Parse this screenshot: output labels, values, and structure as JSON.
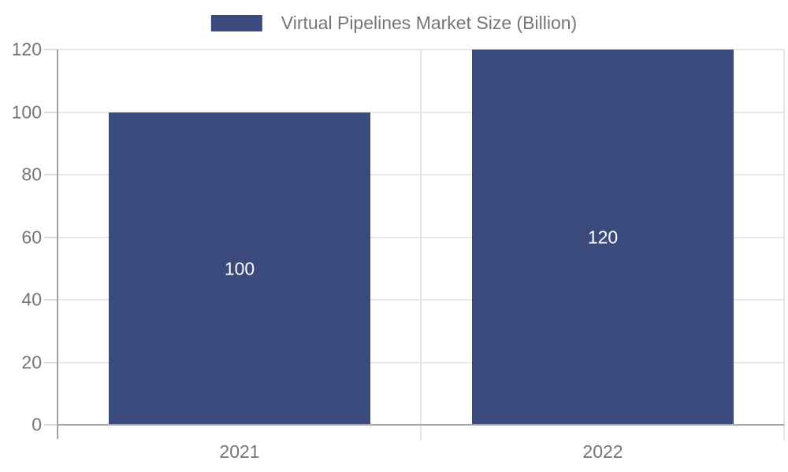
{
  "chart_data": {
    "type": "bar",
    "title": "Virtual Pipelines Market Size (Billion)",
    "categories": [
      "2021",
      "2022"
    ],
    "values": [
      100,
      120
    ],
    "bar_labels": [
      "100",
      "120"
    ],
    "y_ticks": [
      0,
      20,
      40,
      60,
      80,
      100,
      120
    ],
    "ylim": [
      0,
      120
    ],
    "xlabel": "",
    "ylabel": "",
    "grid": true,
    "legend": {
      "position": "top-center",
      "label": "Virtual Pipelines Market Size (Billion)"
    },
    "colors": {
      "bar": "#3A4A7D",
      "bar_label": "#FFFFFF",
      "gridline": "#E7E7E7",
      "tick": "#D9D9D9",
      "separator": "#E3E3E3",
      "axis": "#A0A0A0",
      "baseline": "#A6A6A6",
      "text": "#757575",
      "background": "#FFFFFF"
    }
  }
}
